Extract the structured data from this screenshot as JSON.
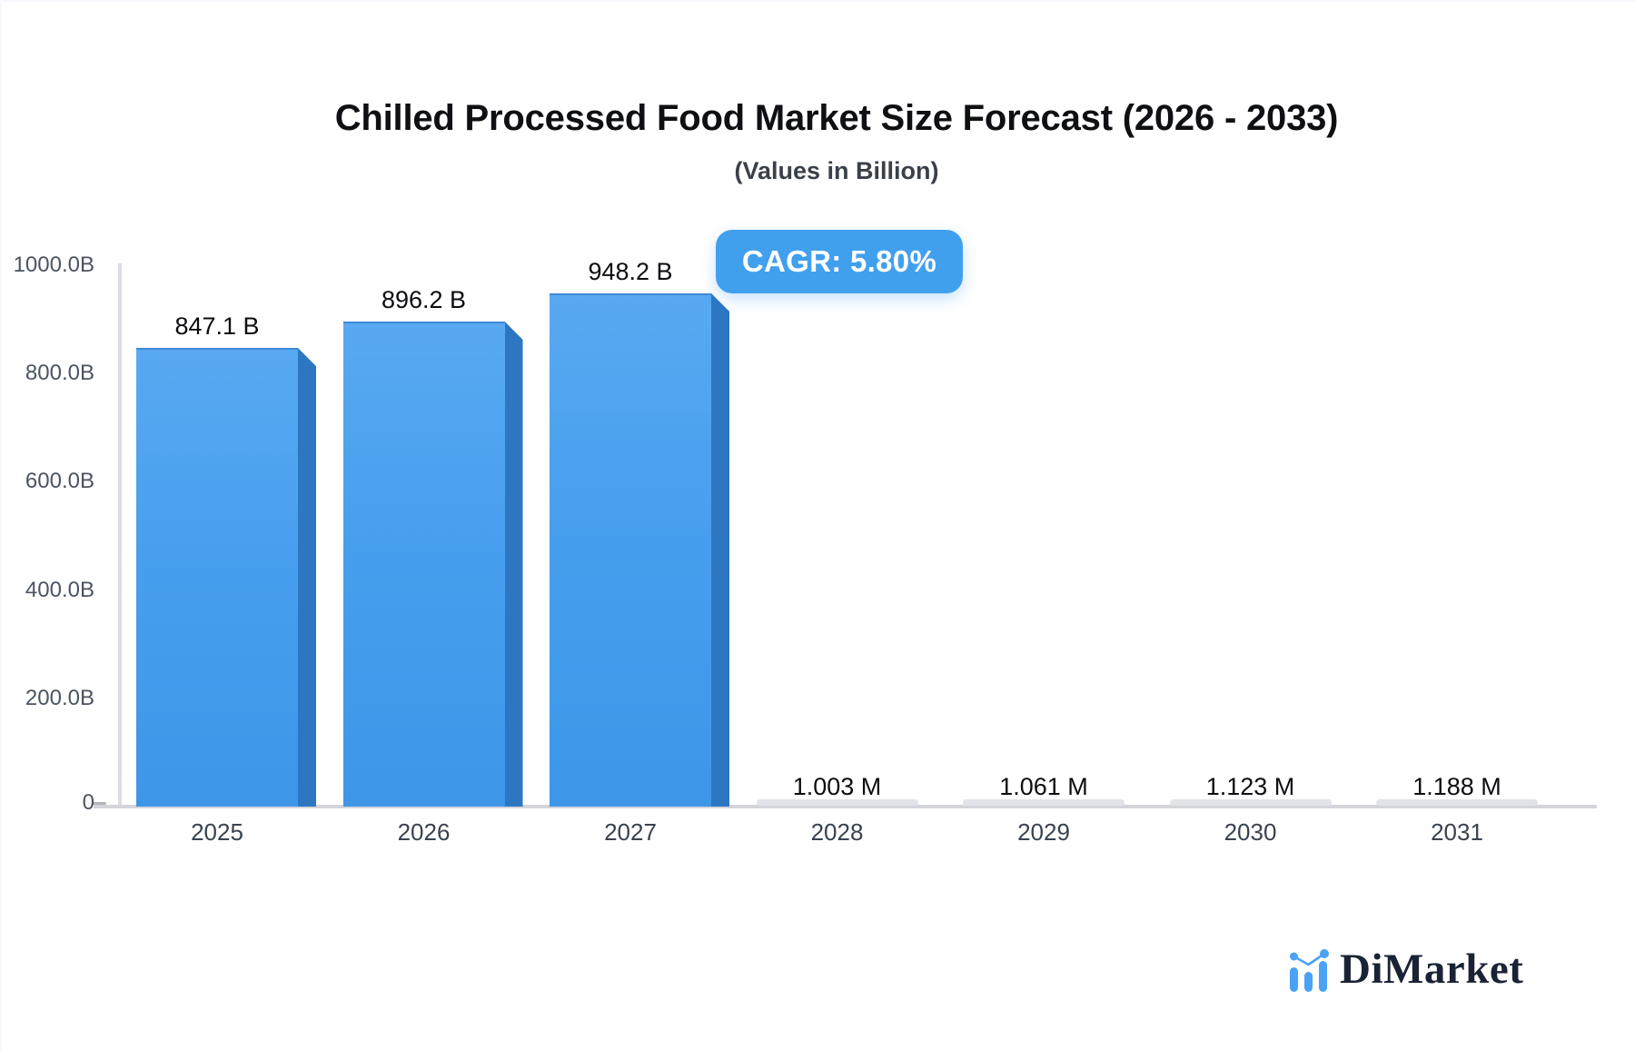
{
  "header": {
    "title": "Chilled Processed Food Market Size Forecast (2026 - 2033)",
    "subtitle": "(Values in Billion)"
  },
  "cagr_badge": {
    "label": "CAGR: 5.80%",
    "bg_color": "#41a0ee",
    "text_color": "#ffffff"
  },
  "brand": {
    "name": "DiMarket",
    "icon": "mini-bar-chart-logo-icon",
    "icon_color": "#4aa2f5",
    "text_color": "#1a2335"
  },
  "chart_data": {
    "type": "bar",
    "title": "Chilled Processed Food Market Size Forecast (2026 - 2033)",
    "subtitle": "(Values in Billion)",
    "categories": [
      "2025",
      "2026",
      "2027",
      "2028",
      "2029",
      "2030",
      "2031"
    ],
    "values_billion": [
      847.1,
      896.2,
      948.2,
      0.001003,
      0.001061,
      0.001123,
      0.001188
    ],
    "value_labels": [
      "847.1 B",
      "896.2 B",
      "948.2 B",
      "1.003 M",
      "1.061 M",
      "1.123 M",
      "1.188 M"
    ],
    "cagr": "5.80%",
    "y_axis": {
      "ticks": [
        "1000.0B",
        "800.0B",
        "600.0B",
        "400.0B",
        "200.0B",
        "0"
      ],
      "range": [
        0,
        1000
      ]
    },
    "grid": false,
    "legend": false,
    "bar_color": "#4fa4ef",
    "bar_side_color": "#2d77c2",
    "small_bar_color": "#e2e3e8"
  }
}
